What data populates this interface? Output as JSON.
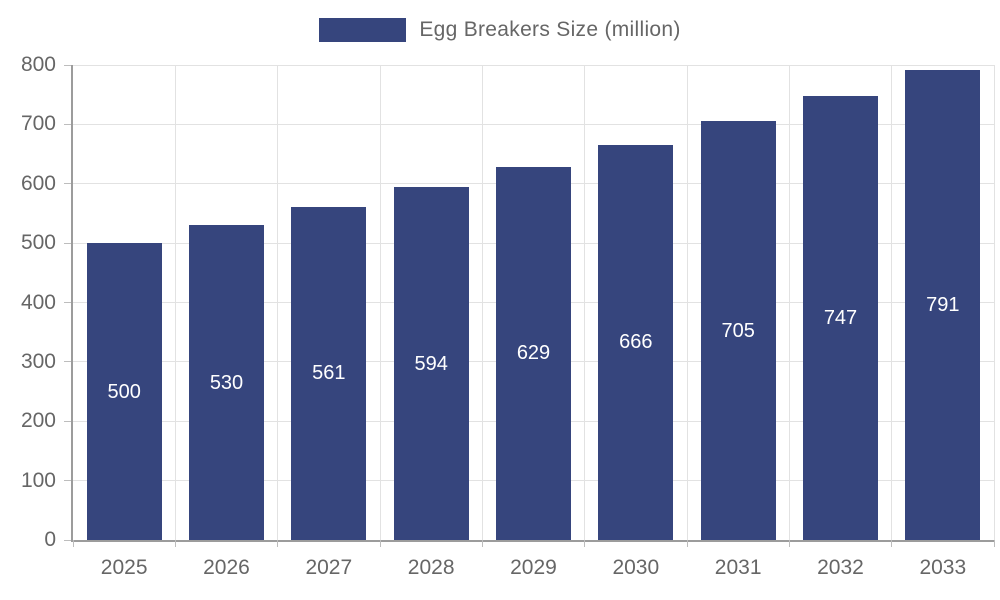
{
  "legend": {
    "label": "Egg Breakers Size (million)"
  },
  "colors": {
    "bar": "#36457d",
    "grid": "#e2e2e2",
    "axis": "#9c9c9c",
    "tick": "#bdbdbd",
    "axis_text": "#666666",
    "value_text": "#ffffff"
  },
  "chart_data": {
    "type": "bar",
    "title": "",
    "categories": [
      "2025",
      "2026",
      "2027",
      "2028",
      "2029",
      "2030",
      "2031",
      "2032",
      "2033"
    ],
    "series": [
      {
        "name": "Egg Breakers Size (million)",
        "values": [
          500,
          530,
          561,
          594,
          629,
          666,
          705,
          747,
          791
        ]
      }
    ],
    "value_labels": [
      "500",
      "530",
      "561",
      "594",
      "629",
      "666",
      "705",
      "747",
      "791"
    ],
    "xlabel": "",
    "ylabel": "",
    "ylim": [
      0,
      800
    ],
    "yticks": [
      0,
      100,
      200,
      300,
      400,
      500,
      600,
      700,
      800
    ],
    "grid": true,
    "legend_position": "top"
  }
}
